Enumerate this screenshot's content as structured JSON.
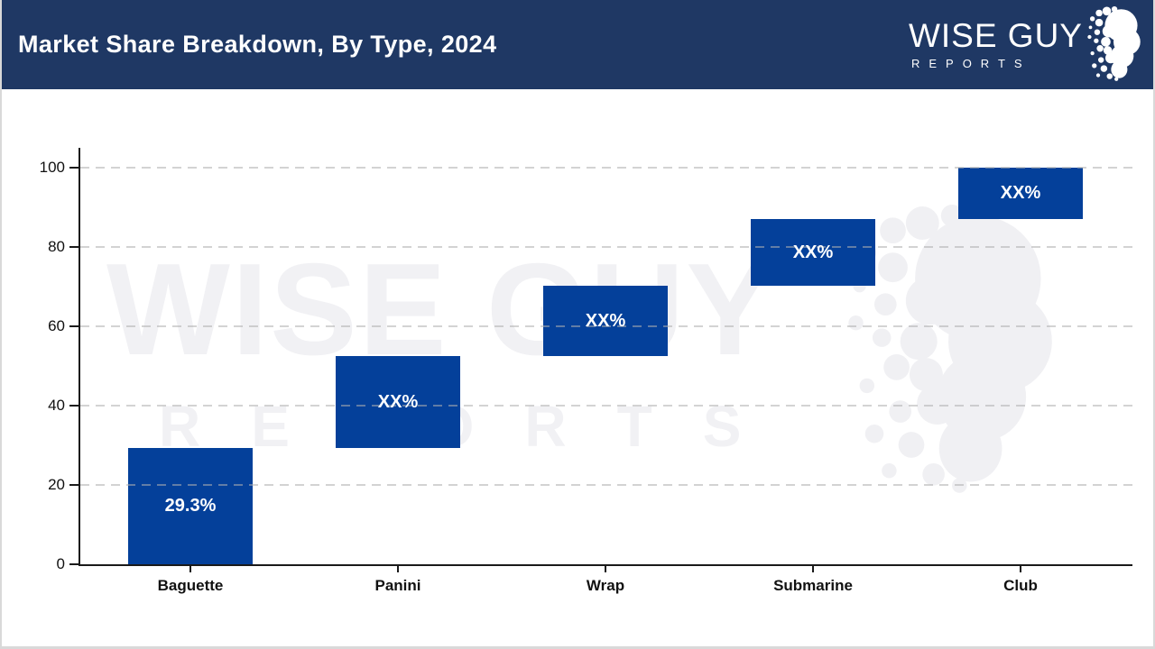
{
  "header": {
    "title": "Market Share Breakdown, By Type, 2024",
    "logo": {
      "line1": "WISE GUY",
      "line2": "REPORTS"
    }
  },
  "watermark": {
    "line1": "WISE GUY",
    "line2": "REPORTS"
  },
  "chart_data": {
    "type": "bar",
    "subtype": "waterfall",
    "title": "Market Share Breakdown, By Type, 2024",
    "categories": [
      "Baguette",
      "Panini",
      "Wrap",
      "Submarine",
      "Club"
    ],
    "segments": [
      {
        "category": "Baguette",
        "base": 0,
        "top": 29.3,
        "label": "29.3%"
      },
      {
        "category": "Panini",
        "base": 29.3,
        "top": 52.5,
        "label": "XX%"
      },
      {
        "category": "Wrap",
        "base": 52.5,
        "top": 70.2,
        "label": "XX%"
      },
      {
        "category": "Submarine",
        "base": 70.2,
        "top": 87,
        "label": "XX%"
      },
      {
        "category": "Club",
        "base": 87,
        "top": 100,
        "label": "XX%"
      }
    ],
    "xlabel": "",
    "ylabel": "",
    "ylim": [
      0,
      100
    ],
    "yticks": [
      0,
      20,
      40,
      60,
      80,
      100
    ],
    "grid": "horizontal-dashed",
    "legend": "none",
    "bar_color": "#04409a",
    "bar_label_color": "#ffffff"
  },
  "colors": {
    "header_bg": "#1f3864",
    "bar": "#04409a",
    "grid": "#d9d9d9",
    "axis": "#1a1a1a",
    "text": "#111111",
    "watermark": "#f1f1f4",
    "background": "#ffffff"
  }
}
